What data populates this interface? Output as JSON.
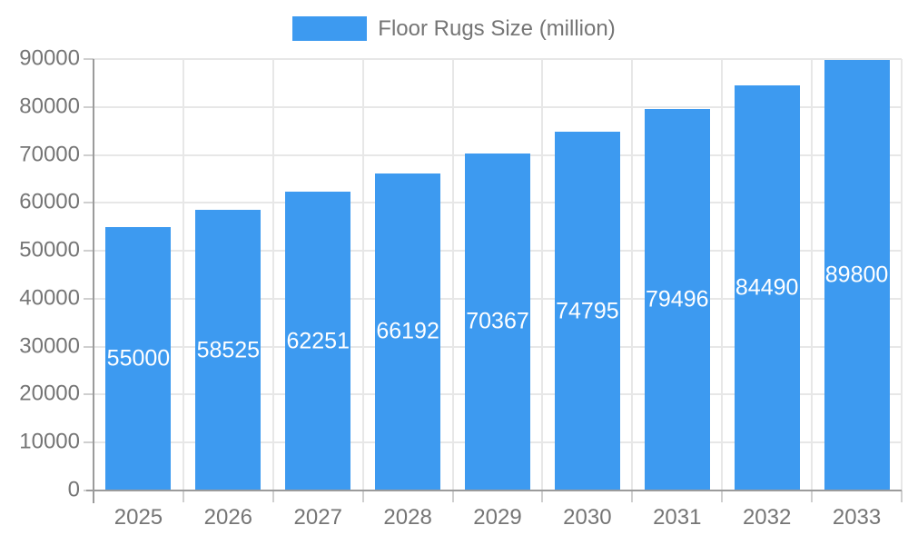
{
  "legend": {
    "label": "Floor Rugs Size (million)"
  },
  "colors": {
    "bar": "#3d9af0",
    "axis": "#9b9b9b",
    "grid": "#e7e7e7",
    "tick": "#cfcfcf",
    "axis_text": "#757575",
    "bar_label_text": "#ffffff",
    "background": "#ffffff"
  },
  "chart_data": {
    "type": "bar",
    "categories": [
      "2025",
      "2026",
      "2027",
      "2028",
      "2029",
      "2030",
      "2031",
      "2032",
      "2033"
    ],
    "series": [
      {
        "name": "Floor Rugs Size (million)",
        "values": [
          55000,
          58525,
          62251,
          66192,
          70367,
          74795,
          79496,
          84490,
          89800
        ]
      }
    ],
    "title": "",
    "xlabel": "",
    "ylabel": "",
    "ylim": [
      0,
      90000
    ],
    "ytick_step": 10000,
    "ytick_labels": [
      "0",
      "10000",
      "20000",
      "30000",
      "40000",
      "50000",
      "60000",
      "70000",
      "80000",
      "90000"
    ],
    "grid": true,
    "bar_value_labels": [
      "55000",
      "58525",
      "62251",
      "66192",
      "70367",
      "74795",
      "79496",
      "84490",
      "89800"
    ],
    "legend_position": "top"
  }
}
